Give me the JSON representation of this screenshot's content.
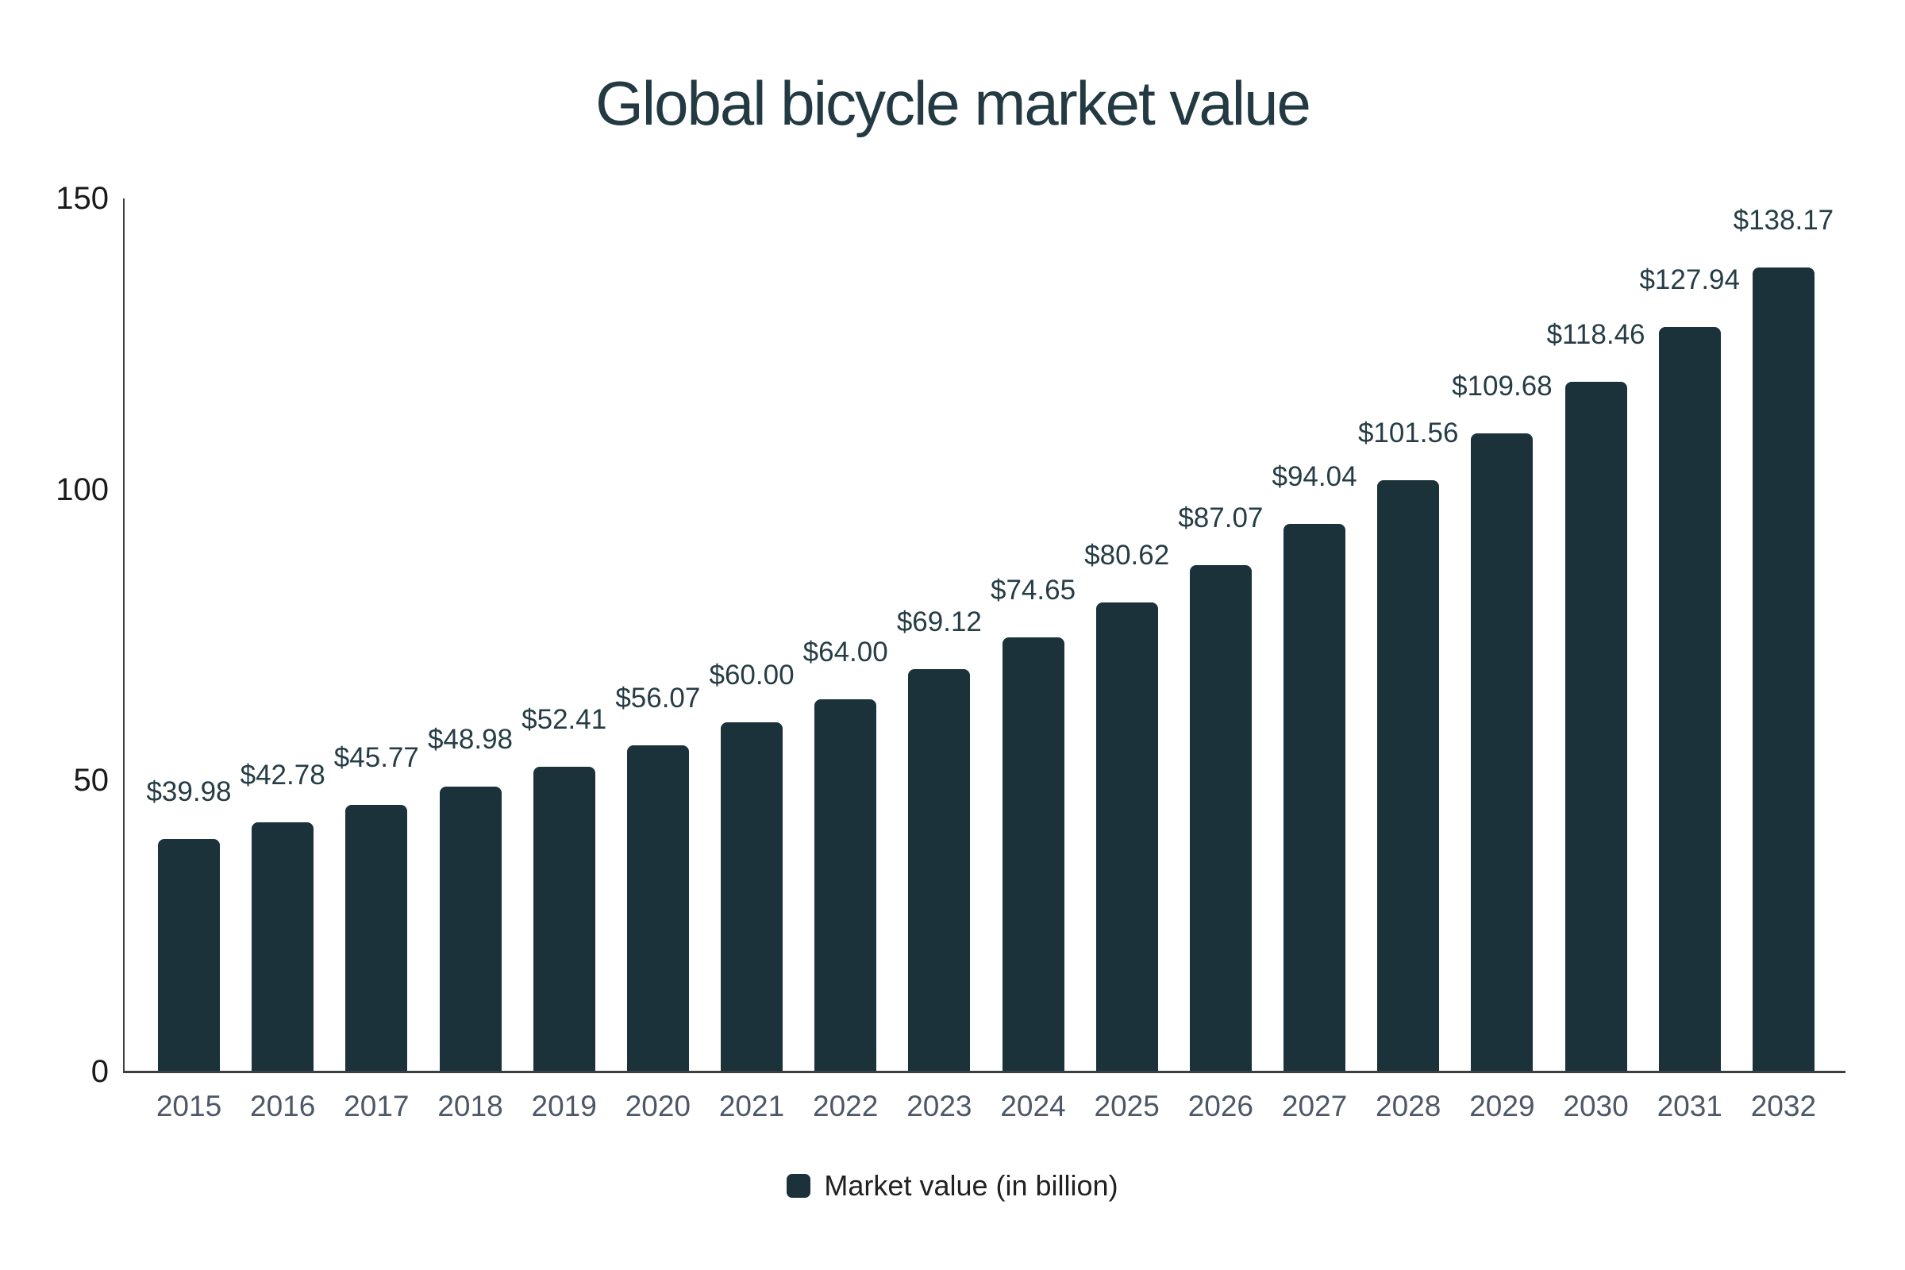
{
  "chart_data": {
    "type": "bar",
    "title": "Global bicycle market value",
    "categories": [
      "2015",
      "2016",
      "2017",
      "2018",
      "2019",
      "2020",
      "2021",
      "2022",
      "2023",
      "2024",
      "2025",
      "2026",
      "2027",
      "2028",
      "2029",
      "2030",
      "2031",
      "2032"
    ],
    "series": [
      {
        "name": "Market value (in billion)",
        "values": [
          39.98,
          42.78,
          45.77,
          48.98,
          52.41,
          56.07,
          60.0,
          64.0,
          69.12,
          74.65,
          80.62,
          87.07,
          94.04,
          101.56,
          109.68,
          118.46,
          127.94,
          138.17
        ]
      }
    ],
    "value_labels": [
      "$39.98",
      "$42.78",
      "$45.77",
      "$48.98",
      "$52.41",
      "$56.07",
      "$60.00",
      "$64.00",
      "$69.12",
      "$74.65",
      "$80.62",
      "$87.07",
      "$94.04",
      "$101.56",
      "$109.68",
      "$118.46",
      "$127.94",
      "$138.17"
    ],
    "xlabel": "",
    "ylabel": "",
    "ylim": [
      0,
      150
    ],
    "y_ticks": [
      0,
      50,
      100,
      150
    ],
    "grid": false,
    "legend_position": "bottom"
  },
  "colors": {
    "bar": "#1b323a",
    "title": "#233a43",
    "value_label": "#263d46",
    "year_label": "#4e5767",
    "tick_label": "#1a1a1a",
    "legend_text": "#212121",
    "axis": "#3a3f44"
  }
}
